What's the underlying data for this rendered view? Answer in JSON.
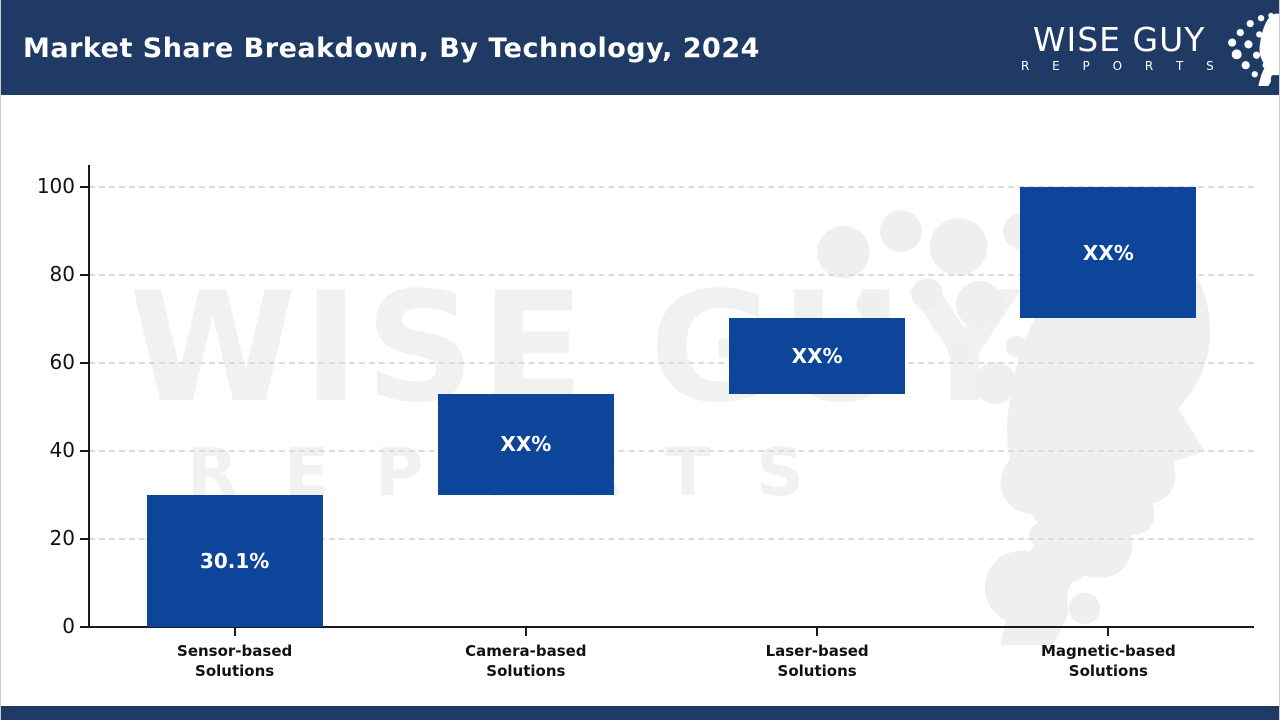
{
  "header": {
    "title": "Market Share Breakdown, By Technology, 2024",
    "bg_color": "#1f3a64",
    "logo": {
      "line1": "WISE GUY",
      "line2": "R E P O R T S"
    }
  },
  "watermark": {
    "line1": "WISE GUY",
    "line2": "REPORTS"
  },
  "chart_data": {
    "type": "bar",
    "subtype": "floating-waterfall",
    "title": "Market Share Breakdown, By Technology, 2024",
    "categories": [
      "Sensor-based Solutions",
      "Camera-based Solutions",
      "Laser-based Solutions",
      "Magnetic-based Solutions"
    ],
    "categories_lines": [
      [
        "Sensor-based",
        "Solutions"
      ],
      [
        "Camera-based",
        "Solutions"
      ],
      [
        "Laser-based",
        "Solutions"
      ],
      [
        "Magnetic-based",
        "Solutions"
      ]
    ],
    "series": [
      {
        "name": "Market Share",
        "segments": [
          {
            "from": 0,
            "to": 30.1
          },
          {
            "from": 30.1,
            "to": 52.9
          },
          {
            "from": 52.9,
            "to": 70.2
          },
          {
            "from": 70.2,
            "to": 100
          }
        ]
      }
    ],
    "bar_labels": [
      "30.1%",
      "XX%",
      "XX%",
      "XX%"
    ],
    "ylim": [
      0,
      100
    ],
    "yticks": [
      0,
      20,
      40,
      60,
      80,
      100
    ],
    "grid": "horizontal-dashed",
    "legend": "none",
    "bar_color": "#0c4599",
    "label_color": "#ffffff",
    "xlabel": "",
    "ylabel": ""
  }
}
